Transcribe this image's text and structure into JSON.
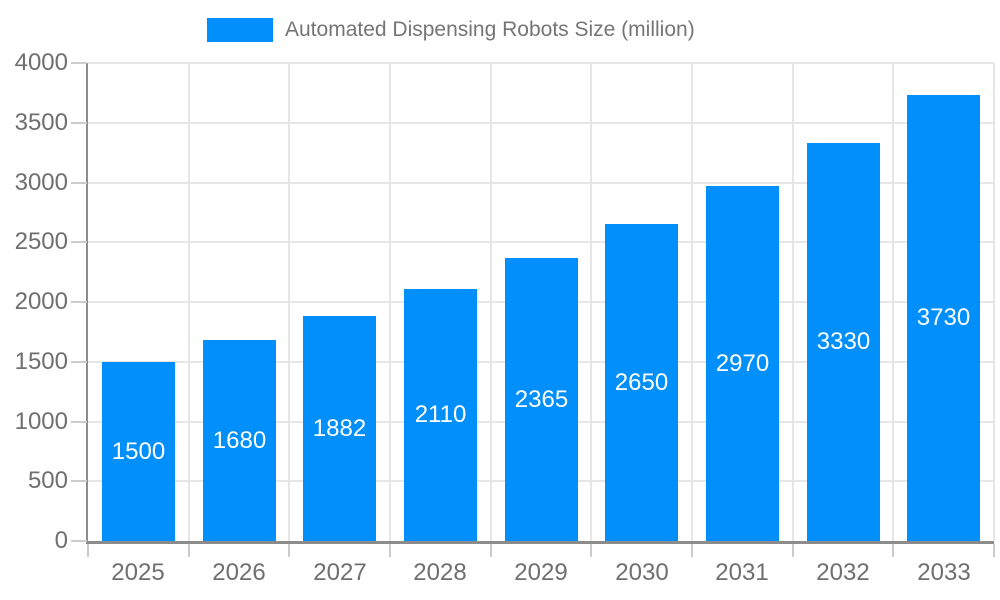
{
  "legend": {
    "label": "Automated Dispensing Robots Size (million)"
  },
  "chart_data": {
    "type": "bar",
    "title": "",
    "categories": [
      "2025",
      "2026",
      "2027",
      "2028",
      "2029",
      "2030",
      "2031",
      "2032",
      "2033"
    ],
    "series": [
      {
        "name": "Automated Dispensing Robots Size (million)",
        "values": [
          1500,
          1680,
          1882,
          2110,
          2365,
          2650,
          2970,
          3330,
          3730
        ]
      }
    ],
    "value_labels": [
      "1500",
      "1680",
      "1882",
      "2110",
      "2365",
      "2650",
      "2970",
      "3330",
      "3730"
    ],
    "xlabel": "",
    "ylabel": "",
    "ylim": [
      0,
      4000
    ],
    "ytick_step": 500,
    "ytick_labels": [
      "0",
      "500",
      "1000",
      "1500",
      "2000",
      "2500",
      "3000",
      "3500",
      "4000"
    ],
    "grid": true,
    "legend_position": "top",
    "colors": {
      "bar": "#008FFB",
      "value_label": "#ffffff",
      "gridline": "#e6e6e6",
      "axis_line": "#8c8c8c",
      "tick_mark": "#cccccc",
      "tick_label": "#6f6f6f",
      "legend_text": "#757575",
      "background": "#ffffff"
    }
  }
}
